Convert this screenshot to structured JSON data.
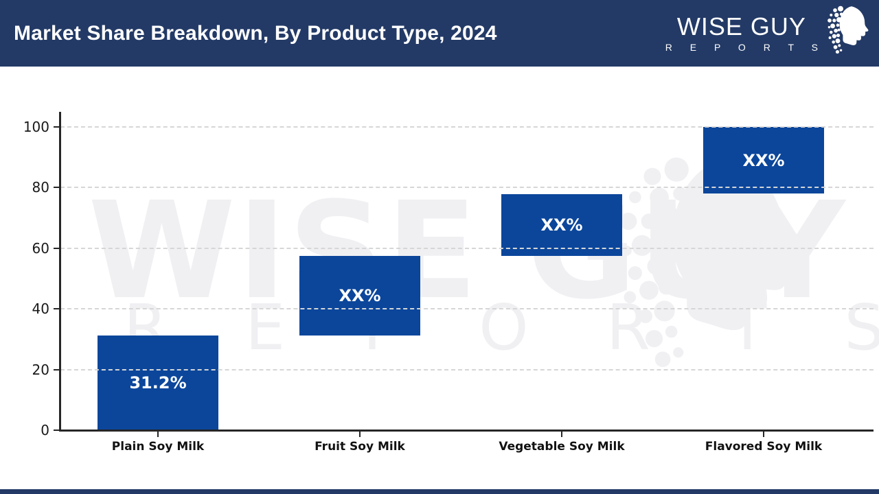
{
  "header": {
    "title": "Market Share Breakdown, By Product Type, 2024",
    "background_color": "#233a66",
    "logo": {
      "primary": "WISE GUY",
      "secondary": "R E P O R T S"
    }
  },
  "watermark": {
    "primary": "WISE GUY",
    "secondary": "R E P O R T S"
  },
  "footer": {
    "background_color": "#233a66"
  },
  "chart_data": {
    "type": "bar",
    "subtype": "floating-waterfall",
    "title": "Market Share Breakdown, By Product Type, 2024",
    "categories": [
      "Plain Soy Milk",
      "Fruit Soy Milk",
      "Vegetable Soy Milk",
      "Flavored Soy Milk"
    ],
    "segments": [
      {
        "category": "Plain Soy Milk",
        "start": 0,
        "end": 31.2,
        "label": "31.2%"
      },
      {
        "category": "Fruit Soy Milk",
        "start": 31.2,
        "end": 57.4,
        "label": "XX%"
      },
      {
        "category": "Vegetable Soy Milk",
        "start": 57.5,
        "end": 77.9,
        "label": "XX%"
      },
      {
        "category": "Flavored Soy Milk",
        "start": 78,
        "end": 100,
        "label": "XX%"
      }
    ],
    "xlabel": "",
    "ylabel": "",
    "ylim": [
      0,
      105
    ],
    "yticks": [
      0,
      20,
      40,
      60,
      80,
      100
    ],
    "grid": "horizontal-dashed",
    "legend": "none",
    "bar_color": "#0b469b",
    "bar_label_color": "#ffffff",
    "axis_color": "#262626",
    "tick_label_color": "#1a1a1a",
    "gridline_color": "#d6d6d6"
  }
}
